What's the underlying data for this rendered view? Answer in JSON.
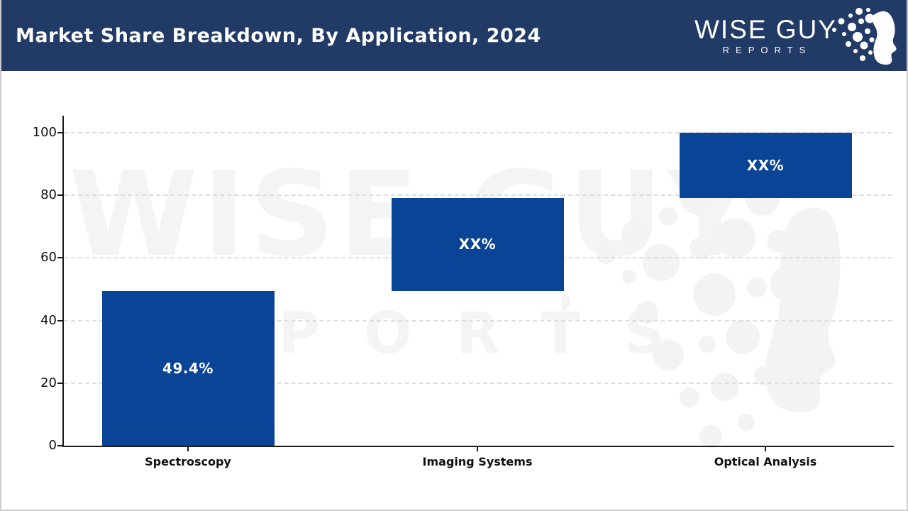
{
  "header": {
    "title": "Market Share Breakdown, By Application, 2024",
    "bg_color": "#213A66",
    "logo": {
      "line1": "WISE GUY",
      "line2": "REPORTS"
    }
  },
  "watermark": {
    "line1": "WISE GUY",
    "line2": "REPORTS"
  },
  "chart_data": {
    "type": "bar",
    "subtype": "waterfall-floating-segments",
    "title": "Market Share Breakdown, By Application, 2024",
    "categories": [
      "Spectroscopy",
      "Imaging Systems",
      "Optical Analysis"
    ],
    "segments": [
      {
        "category": "Spectroscopy",
        "start": 0,
        "end": 49.4,
        "value": 49.4,
        "label": "49.4%"
      },
      {
        "category": "Imaging Systems",
        "start": 49.4,
        "end": 79.2,
        "value": 29.8,
        "label": "XX%"
      },
      {
        "category": "Optical Analysis",
        "start": 79.2,
        "end": 100,
        "value": 20.8,
        "label": "XX%"
      }
    ],
    "xlabel": "",
    "ylabel": "",
    "ylim": [
      0,
      100
    ],
    "yticks": [
      0,
      20,
      40,
      60,
      80,
      100
    ],
    "grid": "horizontal-dashed",
    "legend": "none",
    "bar_color": "#0A4496",
    "bar_label_color": "#FFFFFF"
  }
}
